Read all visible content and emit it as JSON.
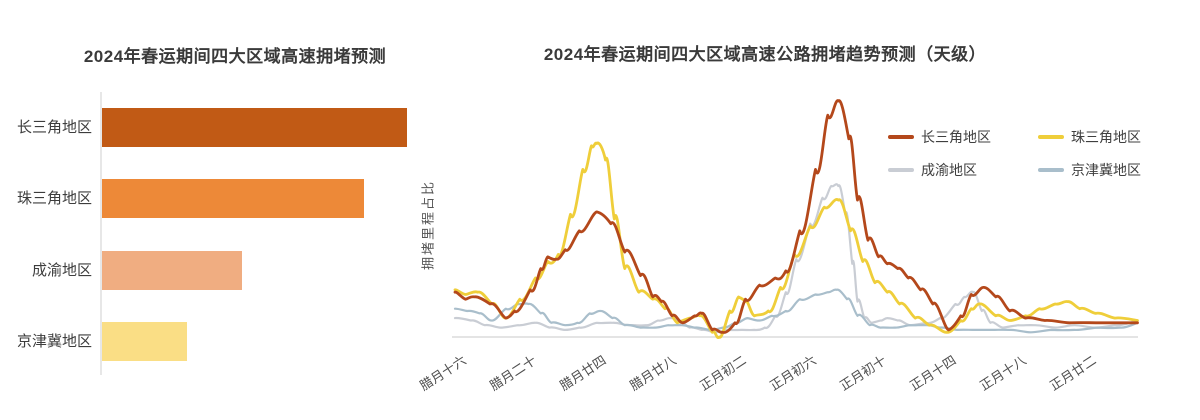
{
  "chart_data": [
    {
      "type": "bar",
      "title": "2024年春运期间四大区域高速拥堵预测",
      "orientation": "horizontal",
      "categories": [
        "长三角地区",
        "珠三角地区",
        "成渝地区",
        "京津冀地区"
      ],
      "values": [
        100,
        86,
        46,
        28
      ],
      "value_unit": "relative congestion index (no numeric axis shown)",
      "bar_colors": [
        "#C15A15",
        "#ED8938",
        "#F0AD81",
        "#FADE85"
      ],
      "xlim": [
        0,
        100
      ],
      "grid": false
    },
    {
      "type": "line",
      "title": "2024年春运期间四大区域高速公路拥堵趋势预测（天级）",
      "ylabel": "拥堵里程占比",
      "xlabel": "",
      "grid": false,
      "legend_position": "top-right, 2x2 grid",
      "x_unit": "days from 腊月十六",
      "xlim": [
        0,
        39.2
      ],
      "ylim": [
        0,
        105
      ],
      "x_tick_days": [
        0,
        4,
        8,
        12,
        16,
        20,
        24,
        28,
        32,
        36
      ],
      "x_tick_labels": [
        "腊月十六",
        "腊月二十",
        "腊月廿四",
        "腊月廿八",
        "正月初二",
        "正月初六",
        "正月初十",
        "正月十四",
        "正月十八",
        "正月廿二"
      ],
      "series": [
        {
          "name": "成渝地区",
          "color": "#C9CDD4",
          "stroke_width": 2.2,
          "points": [
            [
              0,
              8
            ],
            [
              0.9,
              7
            ],
            [
              1.7,
              5
            ],
            [
              2.6,
              4
            ],
            [
              3.6,
              5
            ],
            [
              4.6,
              6
            ],
            [
              5.4,
              4
            ],
            [
              6.3,
              3
            ],
            [
              7.1,
              4
            ],
            [
              8.1,
              6
            ],
            [
              9,
              6
            ],
            [
              9.9,
              5
            ],
            [
              10.9,
              5
            ],
            [
              11.6,
              7
            ],
            [
              12.3,
              8
            ],
            [
              12.9,
              6
            ],
            [
              13.4,
              4
            ],
            [
              14.1,
              3
            ],
            [
              14.9,
              2
            ],
            [
              15.6,
              3
            ],
            [
              16.4,
              3
            ],
            [
              17.1,
              3
            ],
            [
              17.7,
              4
            ],
            [
              18.3,
              9
            ],
            [
              18.9,
              19
            ],
            [
              19.5,
              33
            ],
            [
              20.3,
              48
            ],
            [
              21,
              59
            ],
            [
              21.5,
              64
            ],
            [
              21.9,
              64
            ],
            [
              22.3,
              52
            ],
            [
              22.7,
              31
            ],
            [
              23,
              15
            ],
            [
              23.4,
              8
            ],
            [
              23.8,
              6
            ],
            [
              24.3,
              7
            ],
            [
              24.7,
              8
            ],
            [
              25.3,
              7
            ],
            [
              26,
              5
            ],
            [
              26.9,
              6
            ],
            [
              27.7,
              8
            ],
            [
              28.6,
              14
            ],
            [
              29.1,
              17
            ],
            [
              29.6,
              19
            ],
            [
              30.1,
              11
            ],
            [
              30.6,
              6
            ],
            [
              31.3,
              4
            ],
            [
              32.2,
              5
            ],
            [
              33.1,
              5
            ],
            [
              34.3,
              4
            ],
            [
              35.4,
              5
            ],
            [
              36.6,
              4
            ],
            [
              37.7,
              5
            ],
            [
              39,
              7
            ]
          ]
        },
        {
          "name": "京津冀地区",
          "color": "#A9BECB",
          "stroke_width": 2.2,
          "points": [
            [
              0,
              12
            ],
            [
              0.7,
              11
            ],
            [
              1.4,
              10
            ],
            [
              2.1,
              7
            ],
            [
              2.9,
              12
            ],
            [
              3.6,
              14
            ],
            [
              4.2,
              14
            ],
            [
              4.9,
              10
            ],
            [
              5.5,
              6
            ],
            [
              6.3,
              5
            ],
            [
              7,
              6
            ],
            [
              7.7,
              10
            ],
            [
              8.3,
              11
            ],
            [
              9,
              8
            ],
            [
              9.7,
              5
            ],
            [
              10.6,
              4
            ],
            [
              11.4,
              4
            ],
            [
              12.2,
              5
            ],
            [
              12.9,
              5
            ],
            [
              13.7,
              4
            ],
            [
              14.6,
              3
            ],
            [
              15.3,
              4
            ],
            [
              16,
              6
            ],
            [
              16.7,
              8
            ],
            [
              17.4,
              7
            ],
            [
              18.1,
              9
            ],
            [
              18.9,
              11
            ],
            [
              19.7,
              16
            ],
            [
              20.6,
              18
            ],
            [
              21.3,
              19
            ],
            [
              21.8,
              20
            ],
            [
              22.4,
              16
            ],
            [
              23,
              9
            ],
            [
              23.7,
              5
            ],
            [
              24.3,
              4
            ],
            [
              25.1,
              4
            ],
            [
              26,
              5
            ],
            [
              26.9,
              5
            ],
            [
              27.7,
              4
            ],
            [
              28.7,
              3
            ],
            [
              29.7,
              3
            ],
            [
              30.7,
              3
            ],
            [
              31.7,
              3
            ],
            [
              32.9,
              2
            ],
            [
              34.1,
              3
            ],
            [
              35.4,
              3
            ],
            [
              36.7,
              4
            ],
            [
              38,
              4
            ],
            [
              39,
              6
            ]
          ]
        },
        {
          "name": "珠三角地区",
          "color": "#EFCE3A",
          "stroke_width": 2.8,
          "points": [
            [
              0,
              20
            ],
            [
              0.6,
              18
            ],
            [
              1.3,
              19
            ],
            [
              2.1,
              14
            ],
            [
              2.9,
              8
            ],
            [
              3.7,
              16
            ],
            [
              4.6,
              25
            ],
            [
              5.3,
              32
            ],
            [
              5.9,
              35
            ],
            [
              6.6,
              52
            ],
            [
              7.3,
              71
            ],
            [
              7.8,
              81
            ],
            [
              8.1,
              82
            ],
            [
              8.6,
              75
            ],
            [
              9.1,
              50
            ],
            [
              9.7,
              29
            ],
            [
              10.5,
              19
            ],
            [
              11.3,
              16
            ],
            [
              12,
              12
            ],
            [
              12.7,
              6
            ],
            [
              13.4,
              8
            ],
            [
              14,
              9
            ],
            [
              14.7,
              2
            ],
            [
              15.1,
              0
            ],
            [
              15.7,
              11
            ],
            [
              16.2,
              17
            ],
            [
              16.6,
              15
            ],
            [
              17.1,
              9
            ],
            [
              17.9,
              11
            ],
            [
              18.6,
              21
            ],
            [
              19.4,
              35
            ],
            [
              20.3,
              47
            ],
            [
              21.1,
              55
            ],
            [
              21.9,
              58
            ],
            [
              22.6,
              45
            ],
            [
              23.3,
              32
            ],
            [
              24,
              23
            ],
            [
              24.7,
              19
            ],
            [
              25.4,
              14
            ],
            [
              26.3,
              8
            ],
            [
              27.1,
              5
            ],
            [
              28.1,
              2
            ],
            [
              28.9,
              7
            ],
            [
              29.5,
              12
            ],
            [
              30,
              14
            ],
            [
              30.9,
              9
            ],
            [
              31.7,
              7
            ],
            [
              32.6,
              9
            ],
            [
              33.4,
              12
            ],
            [
              34.3,
              14
            ],
            [
              35,
              15
            ],
            [
              35.7,
              12
            ],
            [
              36.6,
              10
            ],
            [
              37.7,
              8
            ],
            [
              39,
              7
            ]
          ]
        },
        {
          "name": "长三角地区",
          "color": "#B4481B",
          "stroke_width": 2.8,
          "points": [
            [
              0,
              19
            ],
            [
              0.6,
              16
            ],
            [
              1.1,
              17
            ],
            [
              2,
              14
            ],
            [
              2.9,
              8
            ],
            [
              3.4,
              11
            ],
            [
              4.3,
              20
            ],
            [
              4.9,
              29
            ],
            [
              5.3,
              34
            ],
            [
              5.8,
              33
            ],
            [
              6.3,
              37
            ],
            [
              7.1,
              45
            ],
            [
              8.1,
              53
            ],
            [
              8.9,
              48
            ],
            [
              9.7,
              36
            ],
            [
              10.6,
              26
            ],
            [
              11.3,
              17
            ],
            [
              11.8,
              15
            ],
            [
              12.4,
              9
            ],
            [
              13,
              6
            ],
            [
              13.7,
              9
            ],
            [
              14.1,
              10
            ],
            [
              14.7,
              3
            ],
            [
              15.3,
              2
            ],
            [
              16,
              6
            ],
            [
              16.6,
              16
            ],
            [
              17.4,
              22
            ],
            [
              18.3,
              25
            ],
            [
              18.9,
              28
            ],
            [
              19.7,
              45
            ],
            [
              20.6,
              71
            ],
            [
              21.3,
              94
            ],
            [
              21.9,
              100
            ],
            [
              22.5,
              84
            ],
            [
              23,
              58
            ],
            [
              23.6,
              41
            ],
            [
              24.2,
              34
            ],
            [
              24.7,
              31
            ],
            [
              25.3,
              29
            ],
            [
              25.9,
              25
            ],
            [
              26.6,
              20
            ],
            [
              27.3,
              14
            ],
            [
              28.2,
              3
            ],
            [
              28.9,
              9
            ],
            [
              29.5,
              18
            ],
            [
              30.2,
              21
            ],
            [
              30.9,
              17
            ],
            [
              31.7,
              11
            ],
            [
              32.6,
              8
            ],
            [
              33.7,
              7
            ],
            [
              35.1,
              6
            ],
            [
              36.9,
              6
            ],
            [
              39,
              6
            ]
          ]
        }
      ],
      "legend": [
        {
          "label": "长三角地区",
          "color": "#B4481B"
        },
        {
          "label": "珠三角地区",
          "color": "#EFCE3A"
        },
        {
          "label": "成渝地区",
          "color": "#C9CDD4"
        },
        {
          "label": "京津冀地区",
          "color": "#A9BECB"
        }
      ]
    }
  ],
  "style_colors": {
    "background": "#ffffff",
    "title_text": "#3a3a3a",
    "axis_line": "#e7e7e7",
    "baseline": "#dcdcdc",
    "tick_text": "#4f4f4f"
  }
}
